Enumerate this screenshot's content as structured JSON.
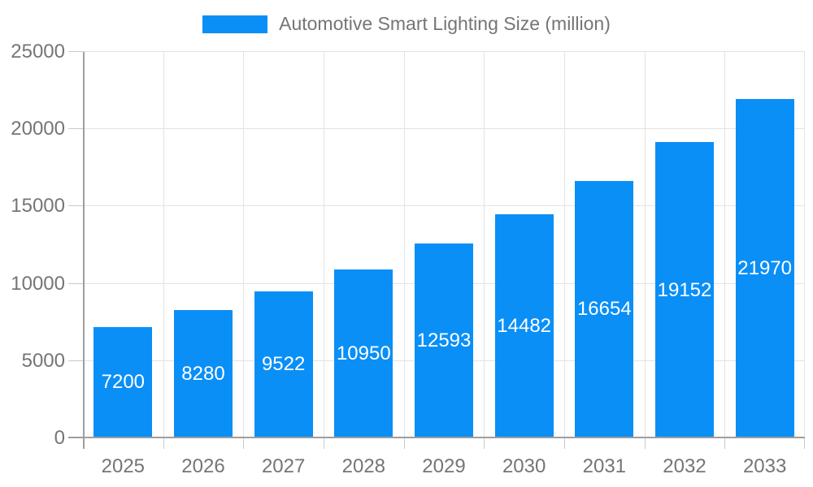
{
  "legend": {
    "label": "Automotive Smart Lighting Size (million)"
  },
  "chart_data": {
    "type": "bar",
    "title": "Automotive Smart Lighting Size (million)",
    "categories": [
      "2025",
      "2026",
      "2027",
      "2028",
      "2029",
      "2030",
      "2031",
      "2032",
      "2033"
    ],
    "values": [
      7200,
      8280,
      9522,
      10950,
      12593,
      14482,
      16654,
      19152,
      21970
    ],
    "xlabel": "",
    "ylabel": "",
    "ylim": [
      0,
      25000
    ],
    "yticks": [
      0,
      5000,
      10000,
      15000,
      20000,
      25000
    ],
    "grid": true,
    "legend_position": "top",
    "value_labels": "inside-center-white"
  },
  "colors": {
    "bar": "#0a8ff7",
    "grid": "#e3e3e3",
    "axis": "#9e9e9e",
    "tick": "#c9c9c9",
    "label": "#757575",
    "value_label": "#ffffff",
    "background": "#ffffff"
  }
}
